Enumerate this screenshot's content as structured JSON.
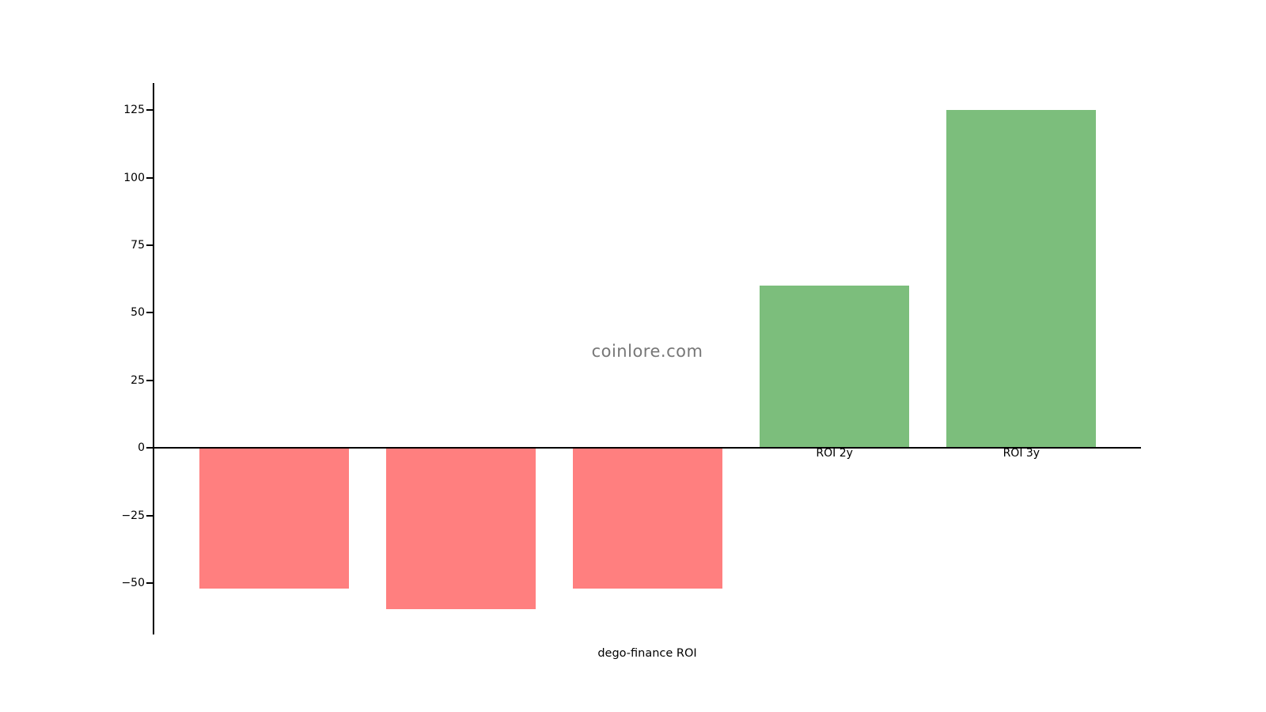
{
  "watermark": {
    "text": "coinlore.com",
    "color": "#777777"
  },
  "chart_data": {
    "type": "bar",
    "title": "",
    "xlabel": "dego-finance ROI",
    "ylabel": "",
    "categories": [
      "",
      "",
      "",
      "ROI 2y",
      "ROI 3y"
    ],
    "values": [
      -52,
      -59.5,
      -52,
      60,
      125
    ],
    "bar_colors": [
      "#ff7f7f",
      "#ff7f7f",
      "#ff7f7f",
      "#7cbe7c",
      "#7cbe7c"
    ],
    "negative_color": "#ff7f7f",
    "positive_color": "#7cbe7c",
    "yticks": [
      -50,
      -25,
      0,
      25,
      50,
      75,
      100,
      125
    ],
    "ylim": [
      -69,
      135
    ],
    "xlim": [
      -0.64,
      4.64
    ],
    "bar_width_fraction": 0.8,
    "grid": false,
    "legend": false,
    "axis_color": "#000000",
    "tick_label_color": "#000000"
  }
}
